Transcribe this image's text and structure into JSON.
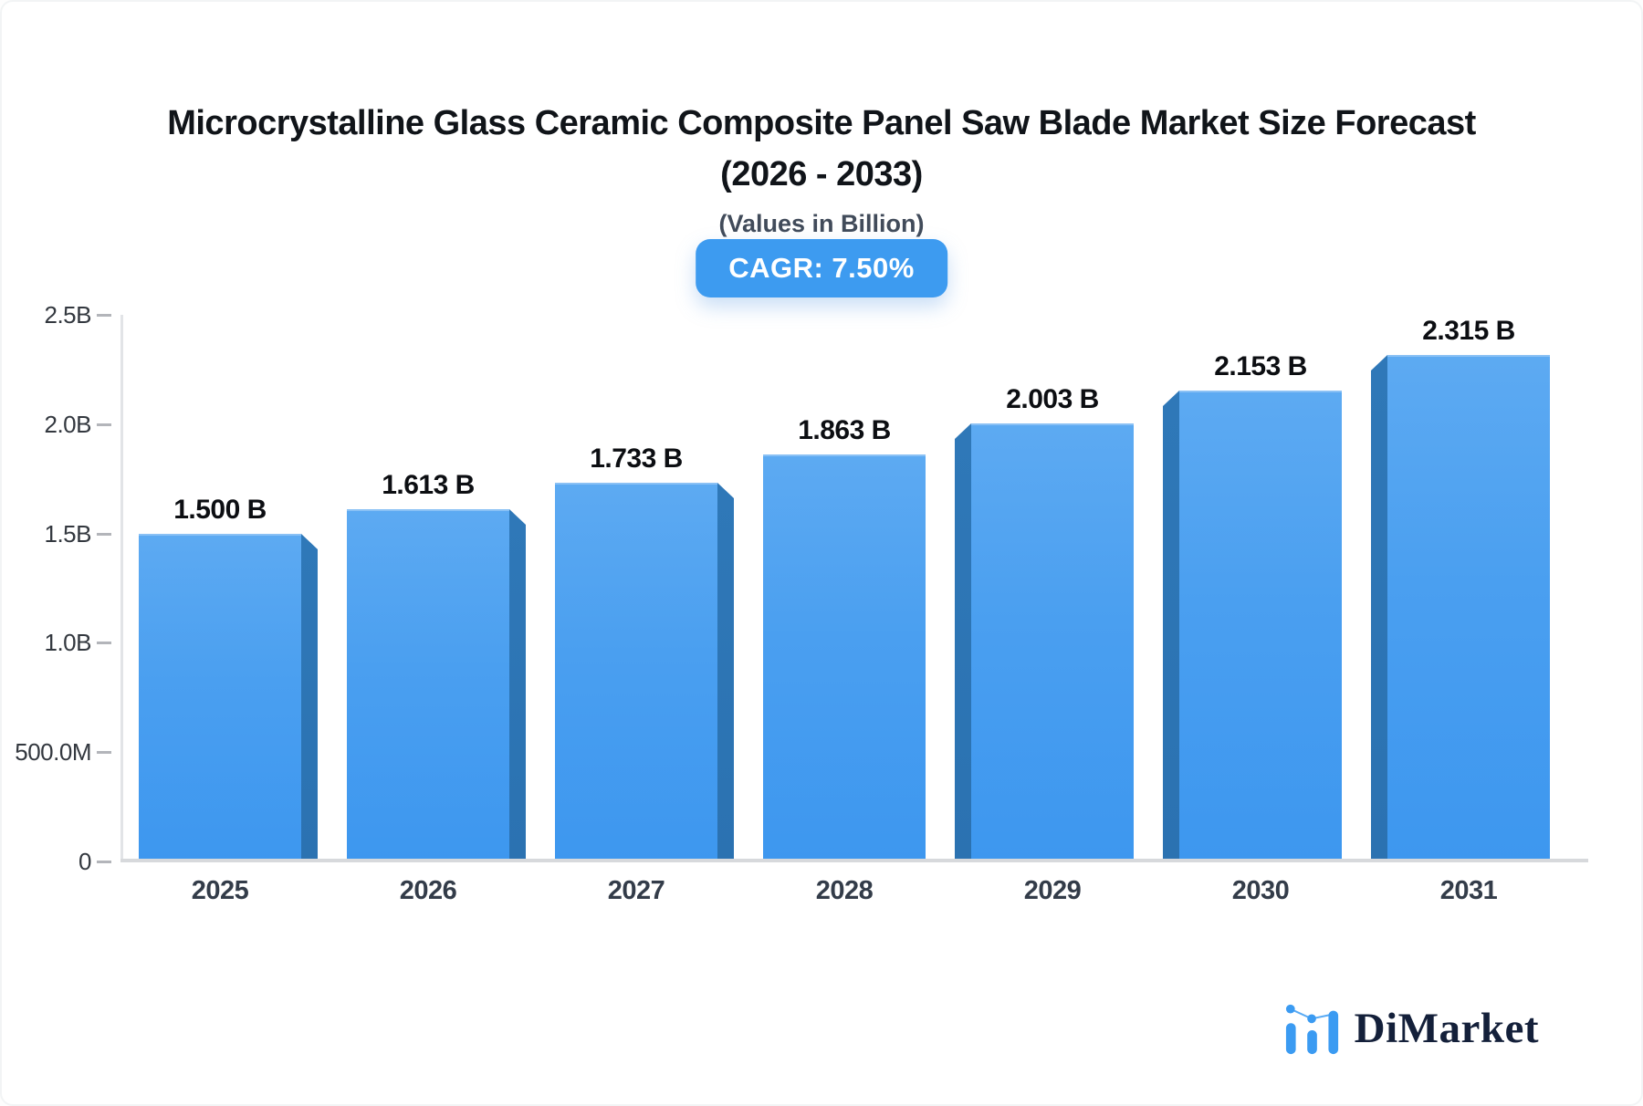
{
  "header": {
    "title_line1": "Microcrystalline Glass Ceramic Composite Panel Saw Blade Market Size Forecast",
    "title_line2": "(2026 - 2033)",
    "subtitle": "(Values in Billion)",
    "cagr_badge": "CAGR: 7.50%"
  },
  "chart_data": {
    "type": "bar",
    "title": "Microcrystalline Glass Ceramic Composite Panel Saw Blade Market Size Forecast (2026 - 2033)",
    "subtitle": "(Values in Billion)",
    "cagr_percent": 7.5,
    "categories": [
      "2025",
      "2026",
      "2027",
      "2028",
      "2029",
      "2030",
      "2031"
    ],
    "values": [
      1.5,
      1.613,
      1.733,
      1.863,
      2.003,
      2.153,
      2.315
    ],
    "value_labels": [
      "1.500 B",
      "1.613 B",
      "1.733 B",
      "1.863 B",
      "2.003 B",
      "2.153 B",
      "2.315 B"
    ],
    "unit": "Billion",
    "xlabel": "",
    "ylabel": "",
    "y_ticks": [
      "2.5B",
      "2.0B",
      "1.5B",
      "1.0B",
      "500.0M",
      "0"
    ],
    "ylim": [
      0,
      2.5
    ],
    "grid": false,
    "legend_position": "none",
    "bar_style": "3d-extruded"
  },
  "colors": {
    "accent": "#3d9bf0",
    "bar_face_top": "#5daaf2",
    "bar_face_bottom": "#3d97ef",
    "bar_side": "#2b72b1",
    "badge_background": "#3d9bf0",
    "badge_text": "#ffffff",
    "title_text": "#101419",
    "subtitle_text": "#414b5a",
    "axis_label_text": "#33383f",
    "value_label_text": "#0c0e12",
    "axis_line": "#e2e4e7",
    "baseline": "#d7d9dc",
    "logo_blue": "#3b9bf2",
    "logo_text": "#14203a"
  },
  "footer": {
    "brand_name": "DiMarket",
    "brand_icon": "bar-chart-logo-icon"
  }
}
